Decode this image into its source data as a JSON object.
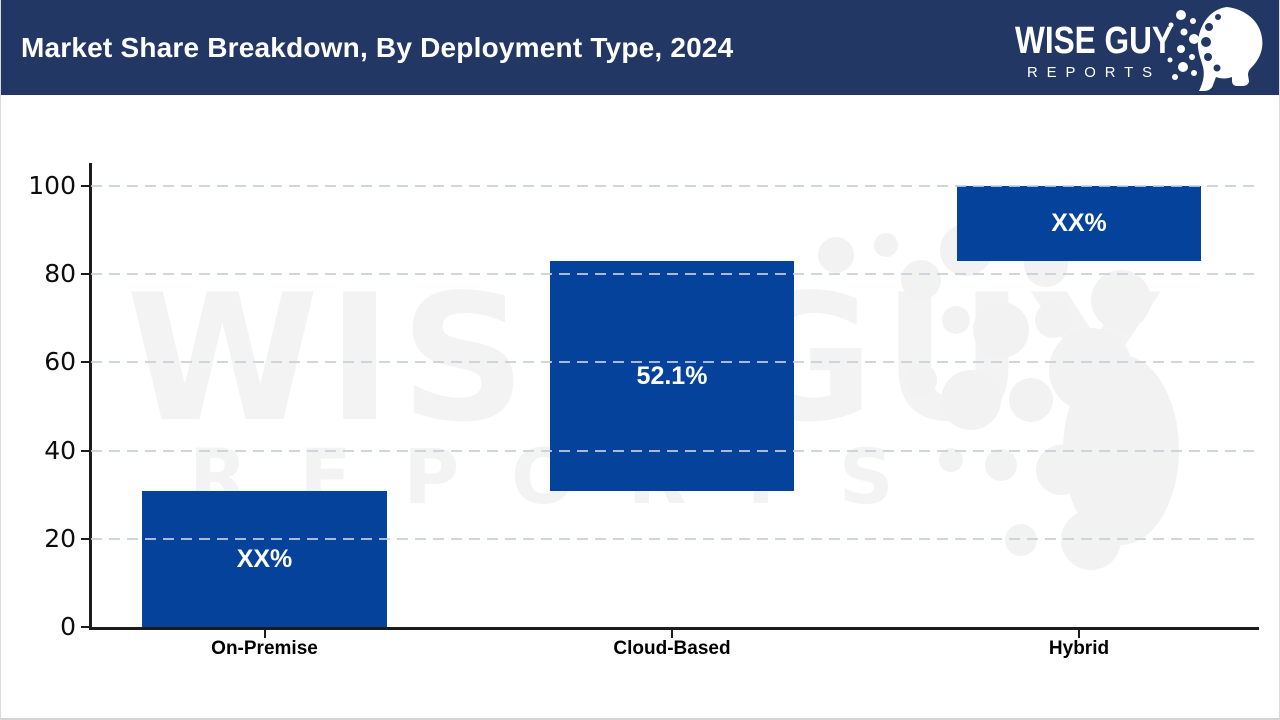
{
  "header": {
    "title": "Market Share Breakdown, By Deployment Type, 2024",
    "bg_color": "#223763",
    "logo": {
      "line1": "WISE GUY",
      "line2": "REPORTS"
    }
  },
  "watermark": {
    "line1": "WISE GUY",
    "line2": "REPORTS"
  },
  "chart_data": {
    "type": "bar",
    "subtype": "floating-waterfall",
    "title": "Market Share Breakdown, By Deployment Type, 2024",
    "categories": [
      "On-Premise",
      "Cloud-Based",
      "Hybrid"
    ],
    "segments": [
      {
        "category": "On-Premise",
        "start": 0,
        "end": 30.9,
        "label": "XX%"
      },
      {
        "category": "Cloud-Based",
        "start": 30.9,
        "end": 83.0,
        "label": "52.1%"
      },
      {
        "category": "Hybrid",
        "start": 83.0,
        "end": 100,
        "label": "XX%"
      }
    ],
    "xlabel": "",
    "ylabel": "",
    "ylim": [
      0,
      100
    ],
    "yticks": [
      0,
      20,
      40,
      60,
      80,
      100
    ],
    "grid": "horizontal-dashed",
    "legend": "none",
    "bar_color": "#05429b",
    "label_color": "#ffffff"
  }
}
